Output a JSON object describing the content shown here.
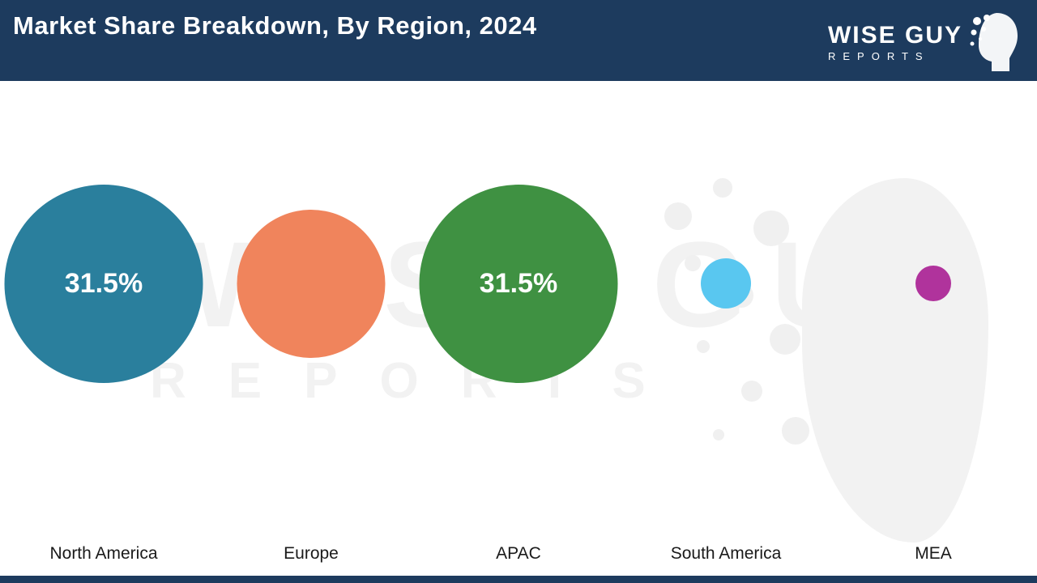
{
  "header": {
    "title": "Market Share Breakdown, By Region, 2024",
    "bg_color": "#1d3b5e",
    "logo": {
      "line1": "WISE GUY",
      "line2": "REPORTS"
    }
  },
  "watermark": {
    "line1": "WISE GUY",
    "line2": "REPORTS"
  },
  "chart_data": {
    "type": "bubble",
    "title": "Market Share Breakdown, By Region, 2024",
    "categories": [
      "North America",
      "Europe",
      "APAC",
      "South America",
      "MEA"
    ],
    "values": [
      31.5,
      17.5,
      31.5,
      2.0,
      1.0
    ],
    "data_labels": [
      "31.5%",
      "",
      "31.5%",
      "",
      ""
    ],
    "colors": [
      "#2a7f9d",
      "#f0845c",
      "#3f9142",
      "#59c7f0",
      "#b0339c"
    ],
    "label_color": "#ffffff",
    "legend": "none",
    "grid": false,
    "note": "Only North America and APAC bubbles display data labels; other values estimated from bubble areas"
  }
}
